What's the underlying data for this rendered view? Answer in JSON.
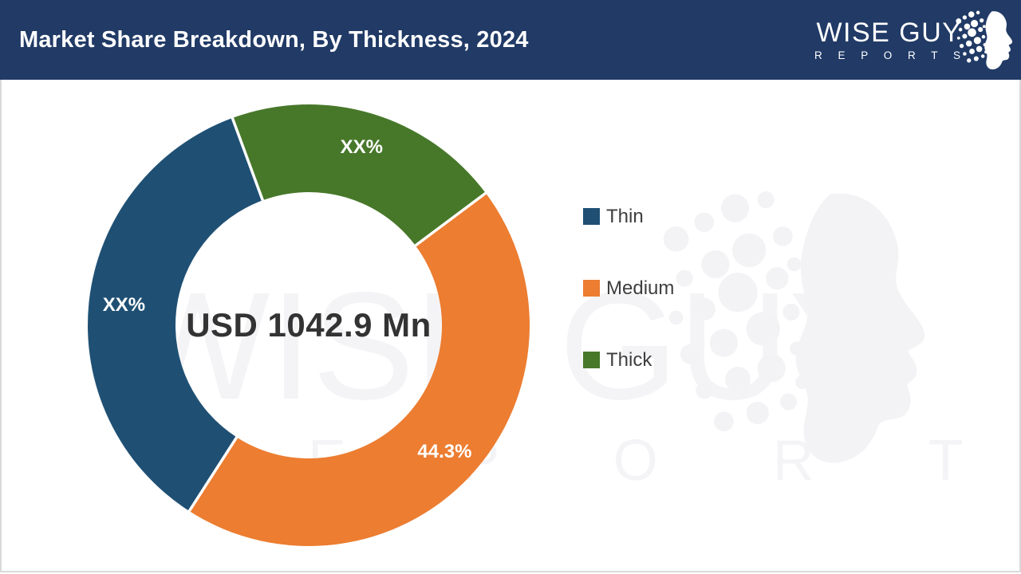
{
  "header": {
    "title": "Market Share Breakdown, By Thickness, 2024",
    "logo": {
      "line1": "WISE GUY",
      "line2": "R E P O R T S"
    }
  },
  "watermark": {
    "line1": "WISE GUY",
    "line2": "R E P O R T S"
  },
  "colors": {
    "header_bg": "#213a66",
    "border": "#d9d9d9",
    "watermark": "#f4f4f6",
    "center_text": "#333333",
    "legend_text": "#3e3e3e",
    "separator": "#ffffff"
  },
  "chart_data": {
    "type": "pie",
    "subtype": "donut",
    "title": "Market Share Breakdown, By Thickness, 2024",
    "center_label": "USD 1042.9 Mn",
    "start_angle_deg": -20.2,
    "segments": [
      {
        "name": "Thick",
        "pct": 20.4,
        "label": "XX%",
        "color": "#47782a"
      },
      {
        "name": "Medium",
        "pct": 44.3,
        "label": "44.3%",
        "color": "#ec7d31"
      },
      {
        "name": "Thin",
        "pct": 35.3,
        "label": "XX%",
        "color": "#1f5074"
      }
    ],
    "legend": [
      {
        "label": "Thin",
        "color": "#1f5074"
      },
      {
        "label": "Medium",
        "color": "#ec7d31"
      },
      {
        "label": "Thick",
        "color": "#47782a"
      }
    ],
    "legend_position": "right"
  }
}
